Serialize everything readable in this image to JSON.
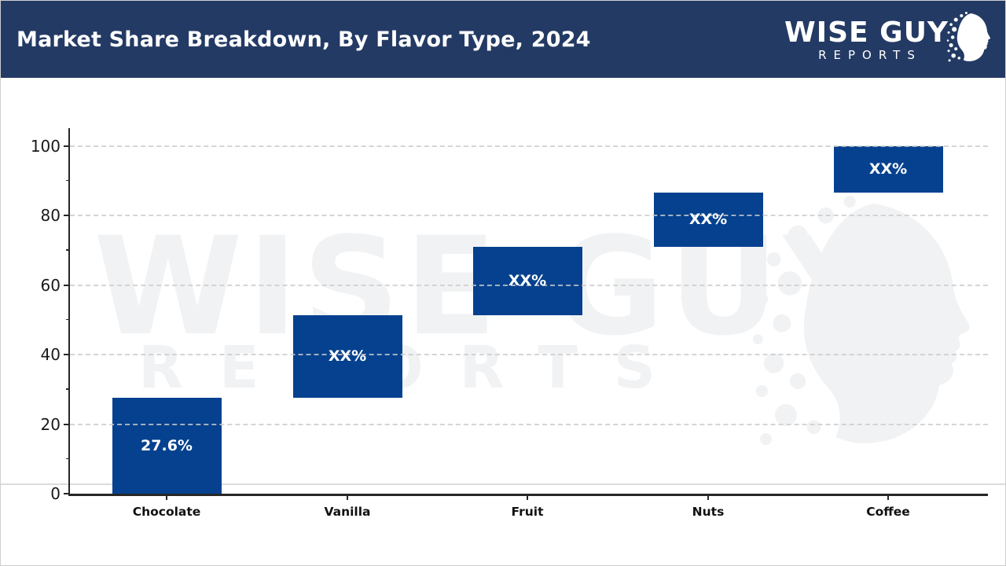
{
  "header": {
    "title": "Market Share Breakdown, By Flavor Type, 2024",
    "bg_color": "#233a64",
    "logo": {
      "line1": "WISE GUY",
      "line2": "REPORTS",
      "icon": "dotted-face-profile-icon"
    }
  },
  "watermark": {
    "line1": "WISE GUY",
    "line2": "REPORTS",
    "color": "#f1f2f4",
    "icon": "dotted-face-profile-icon"
  },
  "chart_data": {
    "type": "bar",
    "subtype": "waterfall",
    "title": "Market Share Breakdown, By Flavor Type, 2024",
    "xlabel": "",
    "ylabel": "",
    "categories": [
      "Chocolate",
      "Vanilla",
      "Fruit",
      "Nuts",
      "Coffee"
    ],
    "segments": [
      {
        "category": "Chocolate",
        "start": 0,
        "end": 27.6,
        "label": "27.6%"
      },
      {
        "category": "Vanilla",
        "start": 27.6,
        "end": 51.3,
        "label": "XX%"
      },
      {
        "category": "Fruit",
        "start": 51.3,
        "end": 71.0,
        "label": "XX%"
      },
      {
        "category": "Nuts",
        "start": 71.0,
        "end": 86.6,
        "label": "XX%"
      },
      {
        "category": "Coffee",
        "start": 86.6,
        "end": 100.0,
        "label": "XX%"
      }
    ],
    "yticks": [
      0,
      20,
      40,
      60,
      80,
      100
    ],
    "minor_ytick_step": 10,
    "ylim": [
      0,
      100
    ],
    "grid": "dashed horizontal gridlines drawn over bars",
    "legend": "none",
    "bar_color": "#05418f",
    "bar_label_color": "#ffffff",
    "axis_color": "#262626"
  }
}
